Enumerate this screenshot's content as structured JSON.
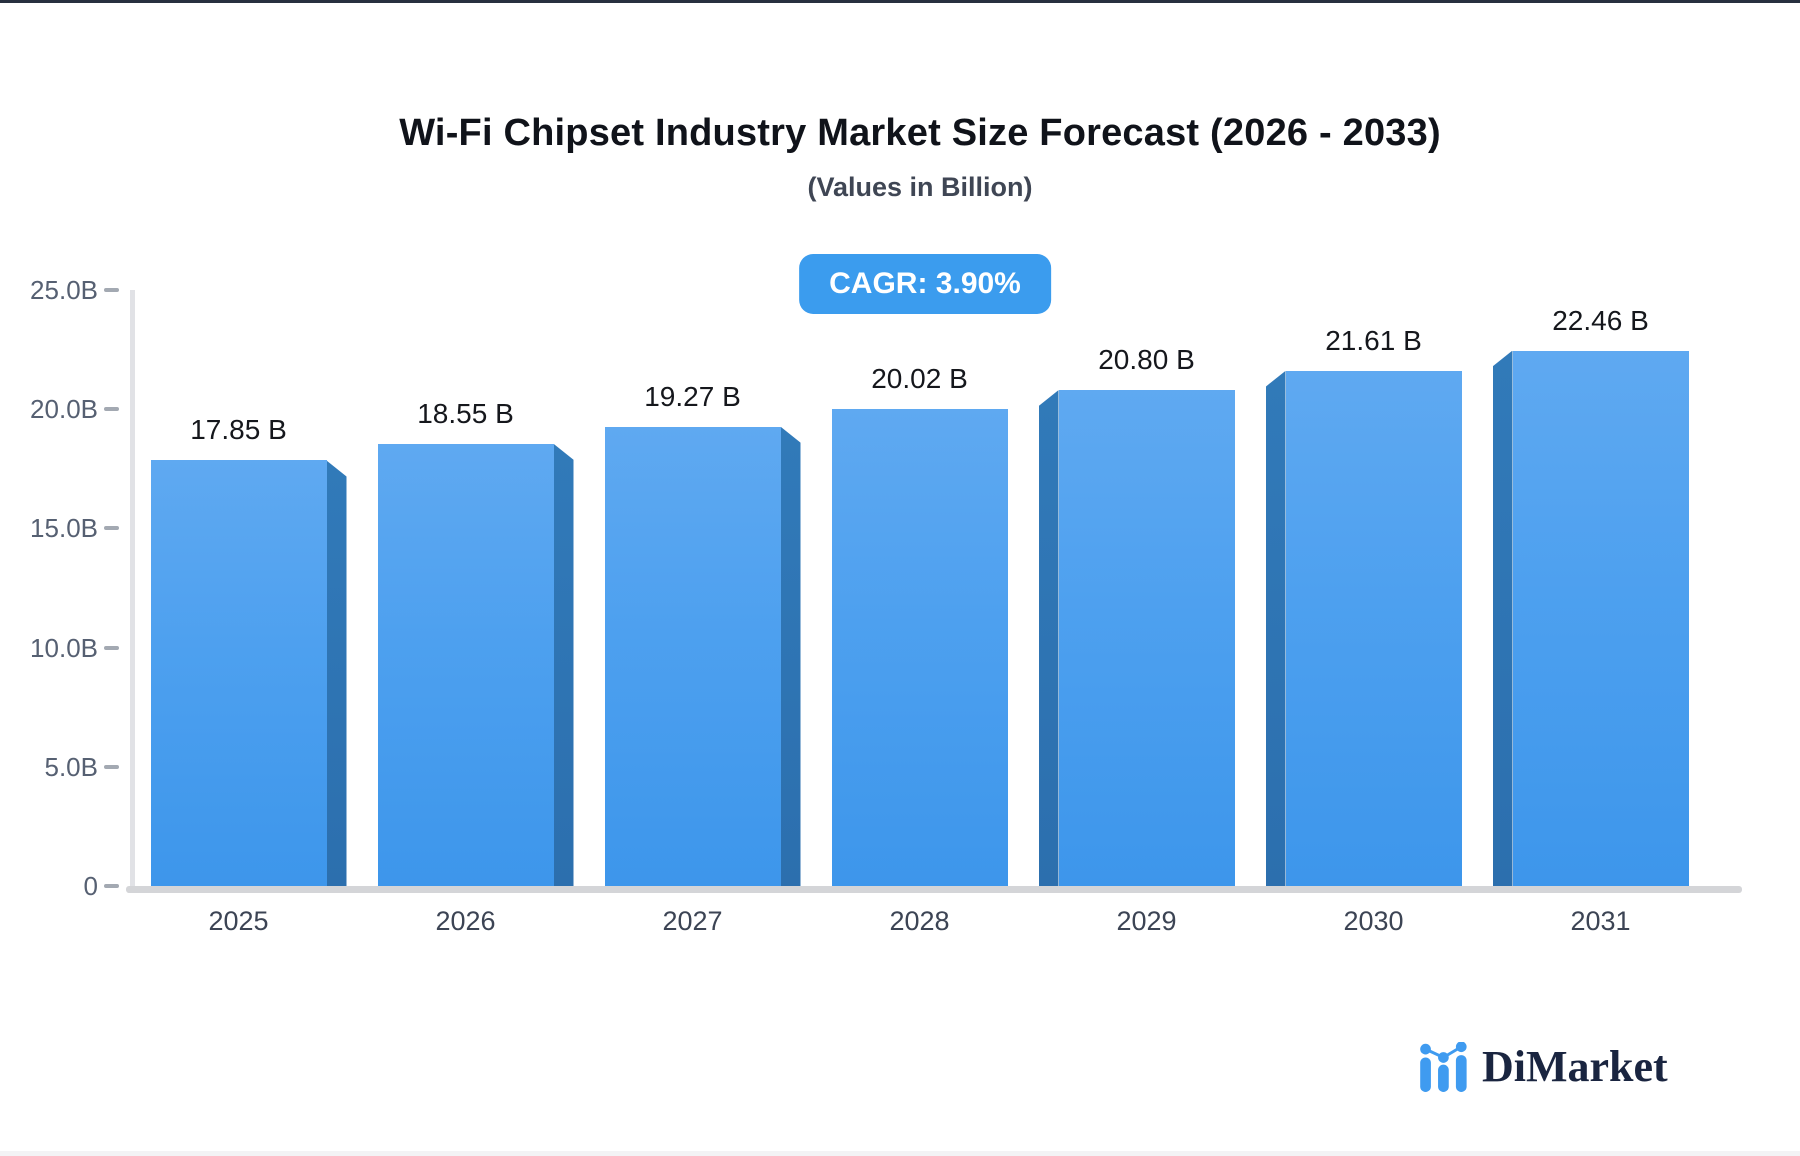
{
  "header": {
    "title": "Wi-Fi Chipset Industry Market Size Forecast (2026 - 2033)",
    "subtitle": "(Values in Billion)"
  },
  "badge": {
    "label": "CAGR: 3.90%"
  },
  "logo": {
    "text": "DiMarket"
  },
  "colors": {
    "accent": "#3b9cee",
    "bar_face_top": "#5fa9f1",
    "bar_face_bottom": "#3d96eb",
    "bar_side": "#2e74b4",
    "baseline": "#d4d5d8",
    "logo_blue": "#3f9bf0",
    "logo_navy": "#1a2540"
  },
  "chart_data": {
    "type": "bar",
    "title": "Wi-Fi Chipset Industry Market Size Forecast (2026 - 2033)",
    "subtitle": "(Values in Billion)",
    "cagr_label": "CAGR: 3.90%",
    "categories": [
      "2025",
      "2026",
      "2027",
      "2028",
      "2029",
      "2030",
      "2031"
    ],
    "values": [
      17.85,
      18.55,
      19.27,
      20.02,
      20.8,
      21.61,
      22.46
    ],
    "value_labels": [
      "17.85 B",
      "18.55 B",
      "19.27 B",
      "20.02 B",
      "20.80 B",
      "21.61 B",
      "22.46 B"
    ],
    "xlabel": "",
    "ylabel": "",
    "ylim": [
      0,
      25
    ],
    "yticks": [
      {
        "label": "25.0B",
        "value": 25
      },
      {
        "label": "20.0B",
        "value": 20
      },
      {
        "label": "15.0B",
        "value": 15
      },
      {
        "label": "10.0B",
        "value": 10
      },
      {
        "label": "5.0B",
        "value": 5
      },
      {
        "label": "0",
        "value": 0
      }
    ],
    "grid": false,
    "legend": false,
    "style": "3d-perspective-bars, vanishing point at center"
  }
}
